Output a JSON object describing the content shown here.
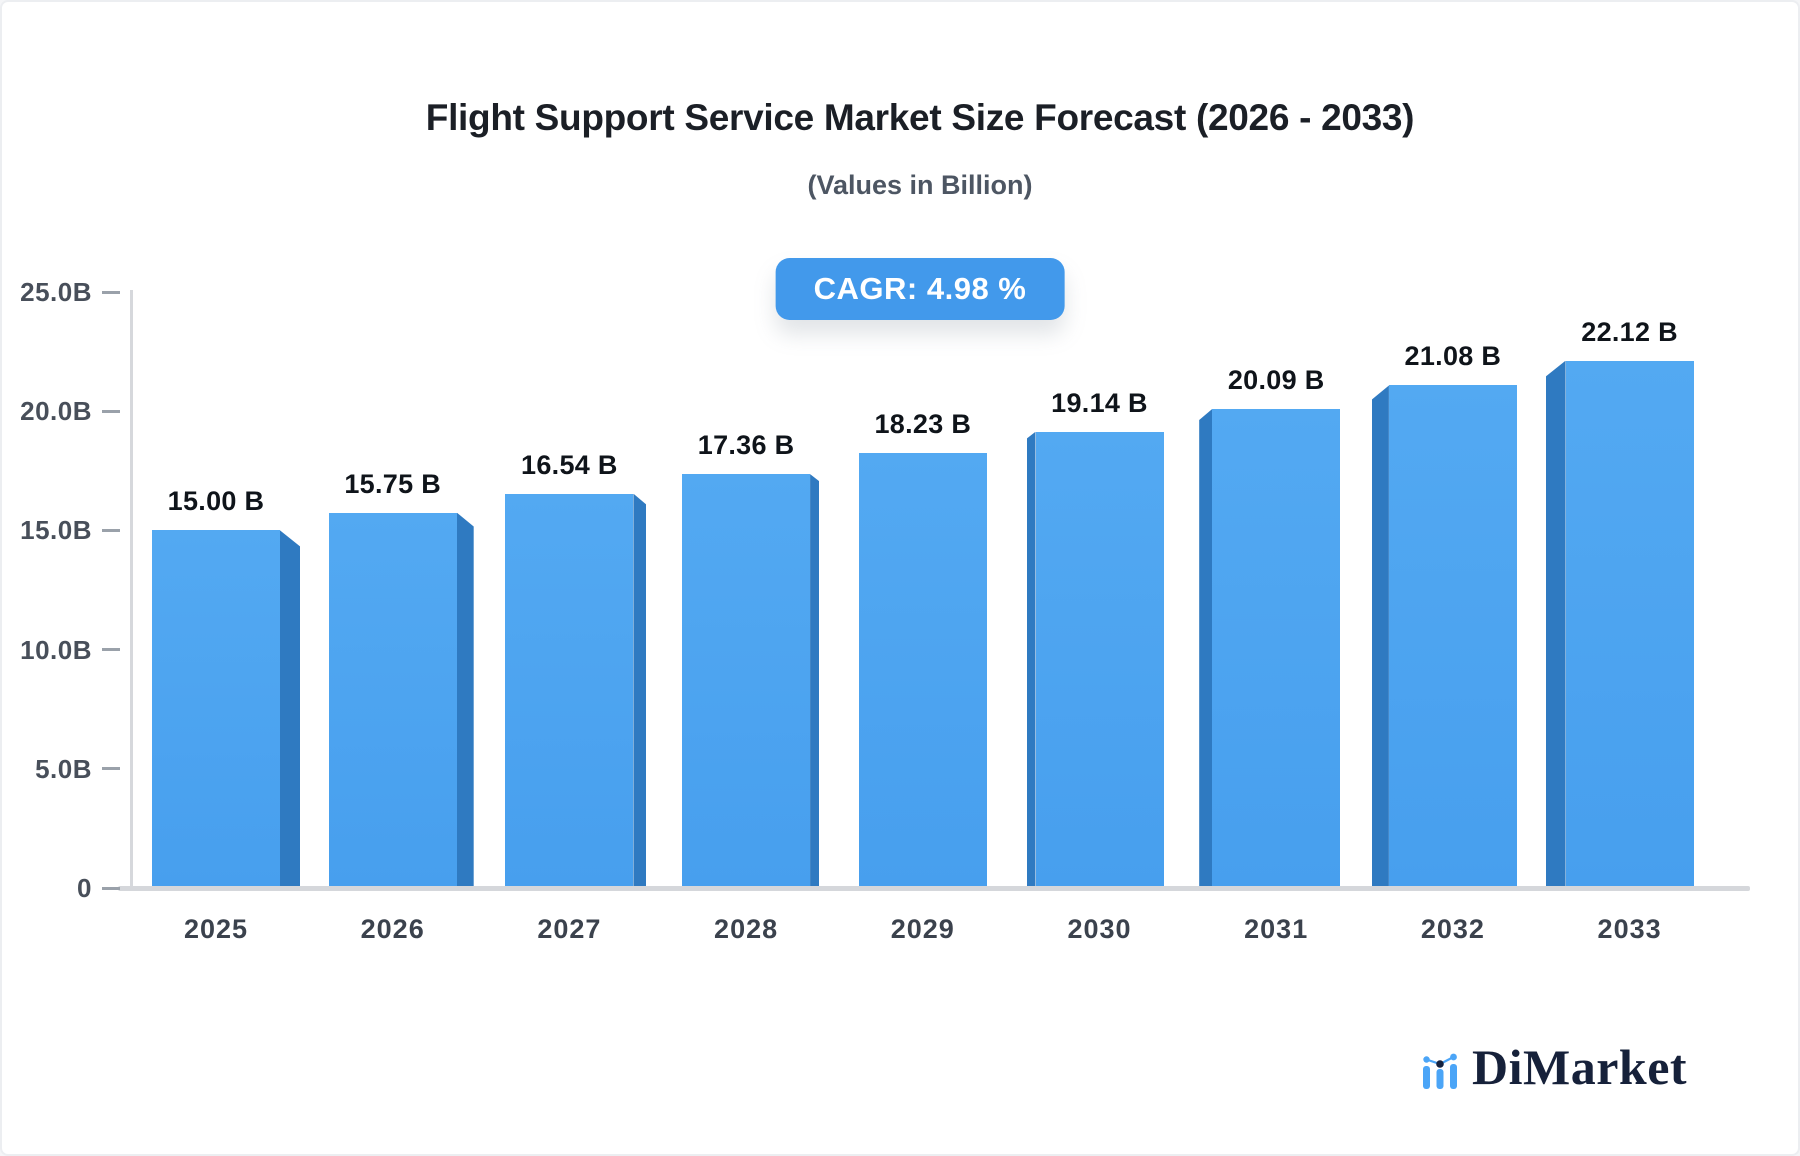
{
  "header": {
    "title": "Flight Support Service Market Size Forecast (2026 - 2033)",
    "subtitle": "(Values in Billion)"
  },
  "badge": {
    "label": "CAGR: 4.98 %"
  },
  "chart_data": {
    "type": "bar",
    "title": "Flight Support Service Market Size Forecast (2026 - 2033)",
    "subtitle": "(Values in Billion)",
    "annotation_badge": "CAGR: 4.98 %",
    "categories": [
      "2025",
      "2026",
      "2027",
      "2028",
      "2029",
      "2030",
      "2031",
      "2032",
      "2033"
    ],
    "values": [
      15.0,
      15.75,
      16.54,
      17.36,
      18.23,
      19.14,
      20.09,
      21.08,
      22.12
    ],
    "value_labels": [
      "15.00 B",
      "15.75 B",
      "16.54 B",
      "17.36 B",
      "18.23 B",
      "19.14 B",
      "20.09 B",
      "21.08 B",
      "22.12 B"
    ],
    "unit": "Billion",
    "xlabel": "",
    "ylabel": "",
    "ylim": [
      0,
      25
    ],
    "yticks": [
      0,
      5,
      10,
      15,
      20,
      25
    ],
    "ytick_labels": [
      "0",
      "5.0B",
      "10.0B",
      "15.0B",
      "20.0B",
      "25.0B"
    ],
    "grid": false,
    "legend": false,
    "bar_color": "#4aa2ef",
    "bar_side_color": "#2f7ac1",
    "badge_color": "#4299eb"
  },
  "logo": {
    "text": "DiMarket",
    "icon": "mini-bar-line-chart-icon",
    "icon_color": "#4ba5f7",
    "text_color": "#16213a"
  }
}
